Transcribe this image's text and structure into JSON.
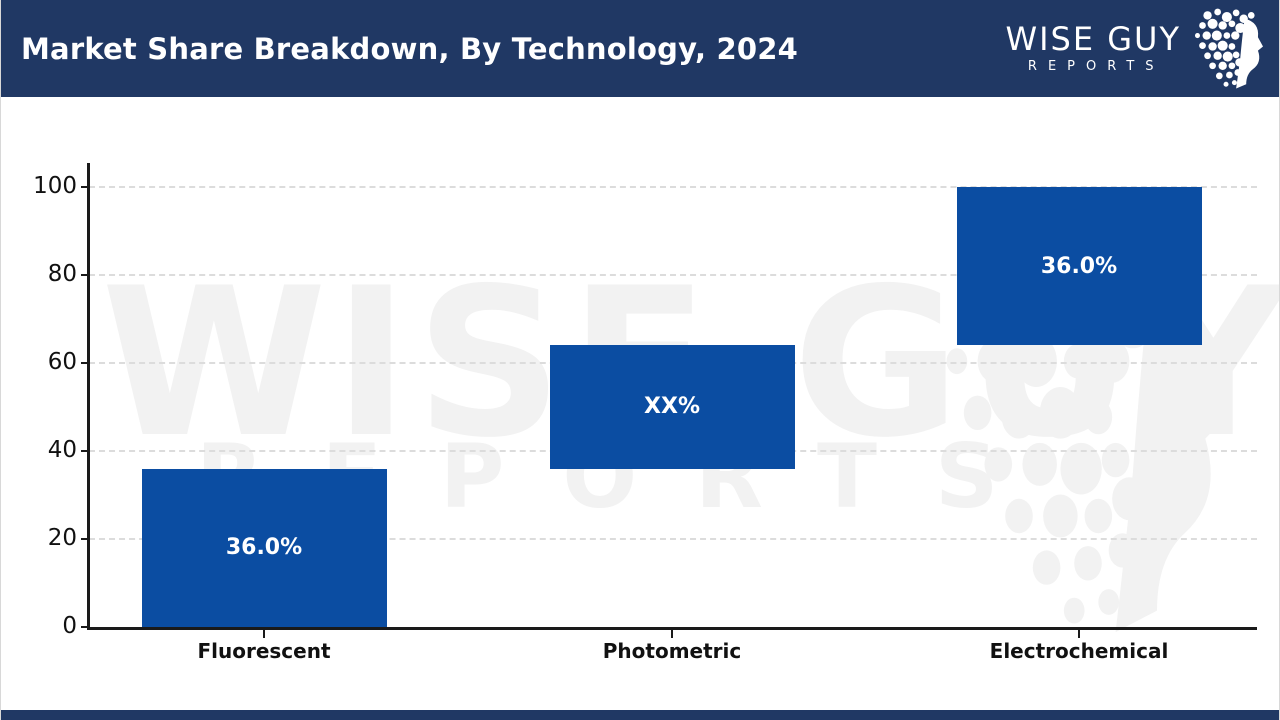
{
  "header": {
    "title": "Market Share Breakdown, By Technology, 2024"
  },
  "logo": {
    "line1": "WISE GUY",
    "line2": "REPORTS",
    "icon": "dotted-face-profile"
  },
  "watermark": {
    "line1": "WISE GUY",
    "line2": "REPORTS",
    "icon": "dotted-face-profile"
  },
  "chart_data": {
    "type": "bar",
    "subtype": "waterfall",
    "title": "Market Share Breakdown, By Technology, 2024",
    "categories": [
      "Fluorescent",
      "Photometric",
      "Electrochemical"
    ],
    "series": [
      {
        "name": "Market Share (%)",
        "segments": [
          {
            "category": "Fluorescent",
            "start": 0,
            "end": 36,
            "label": "36.0%"
          },
          {
            "category": "Photometric",
            "start": 36,
            "end": 64,
            "label": "XX%"
          },
          {
            "category": "Electrochemical",
            "start": 64,
            "end": 100,
            "label": "36.0%"
          }
        ]
      }
    ],
    "xlabel": "",
    "ylabel": "",
    "ylim": [
      0,
      100
    ],
    "yticks": [
      0,
      20,
      40,
      60,
      80,
      100
    ],
    "grid": "horizontal-dashed",
    "legend": "none",
    "bar_color": "#0b4da2",
    "bar_label_color": "#ffffff",
    "axis_color": "#1a1a1a",
    "gridline_color": "#dcdcdc",
    "header_color": "#203864",
    "watermark_color": "#f2f2f2"
  }
}
